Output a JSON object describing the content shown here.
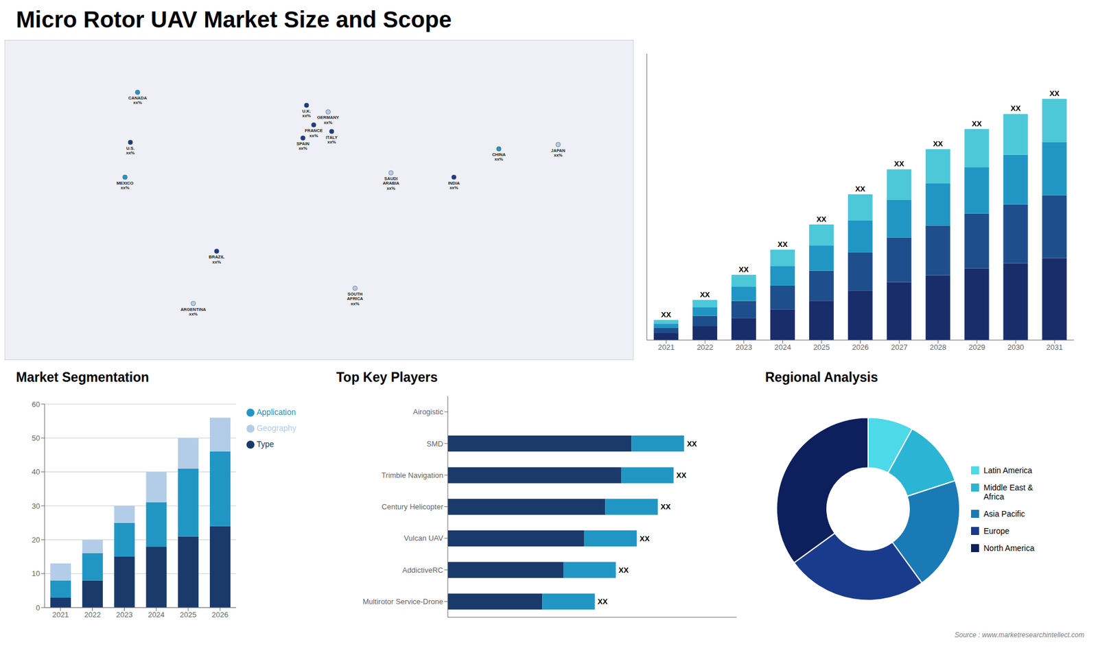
{
  "title": "Micro Rotor UAV Market Size and Scope",
  "source": "Source : www.marketresearchintellect.com",
  "chart_data": [
    {
      "type": "scatter",
      "x": [
        -100,
        -96,
        -103,
        -52,
        -65,
        -2,
        2,
        10,
        -4,
        12,
        45,
        25,
        105,
        138,
        80
      ],
      "values": [
        38,
        61,
        22,
        -12,
        -36,
        55,
        46,
        52,
        40,
        43,
        24,
        -29,
        35,
        37,
        22
      ],
      "colors": [
        "#1a3a8c",
        "#2196c4",
        "#2196c4",
        "#1a3a8c",
        "#b3cde8",
        "#1a3a8c",
        "#1a3a8c",
        "#b3cde8",
        "#1a3a8c",
        "#1a3a8c",
        "#b3cde8",
        "#b3cde8",
        "#2196c4",
        "#b3cde8",
        "#1a3a8c"
      ],
      "labels": [
        "U.S.\nxx%",
        "CANADA\nxx%",
        "MEXICO\nxx%",
        "BRAZIL\nxx%",
        "ARGENTINA\nxx%",
        "U.K.\nxx%",
        "FRANCE\nxx%",
        "GERMANY\nxx%",
        "SPAIN\nxx%",
        "ITALY\nxx%",
        "SAUDI\nARABIA\nxx%",
        "SOUTH\nAFRICA\nxx%",
        "CHINA\nxx%",
        "JAPAN\nxx%",
        "INDIA\nxx%"
      ],
      "xlim": [
        -170,
        180
      ],
      "ylim": [
        -62,
        85
      ],
      "tick_labels": false,
      "grid": false
    },
    {
      "type": "bar",
      "stacked": true,
      "categories": [
        "2021",
        "2022",
        "2023",
        "2024",
        "2025",
        "2026",
        "2027",
        "2028",
        "2029",
        "2030",
        "2031"
      ],
      "series": [
        {
          "color": "#1a2d6b",
          "values": [
            1.36,
            2.72,
            4.42,
            6.12,
            7.82,
            9.86,
            11.56,
            12.92,
            14.28,
            15.3,
            16.32
          ]
        },
        {
          "color": "#1f4e8c",
          "values": [
            1.04,
            2.08,
            3.38,
            4.68,
            5.98,
            7.54,
            8.84,
            9.88,
            10.92,
            11.7,
            12.48
          ]
        },
        {
          "color": "#2196c4",
          "values": [
            0.88,
            1.76,
            2.86,
            3.96,
            5.06,
            6.38,
            7.48,
            8.36,
            9.24,
            9.9,
            10.56
          ]
        },
        {
          "color": "#4dc8d8",
          "values": [
            0.72,
            1.44,
            2.34,
            3.24,
            4.14,
            5.22,
            6.12,
            6.84,
            7.56,
            8.1,
            8.64
          ],
          "value_labels": [
            "XX",
            "XX",
            "XX",
            "XX",
            "XX",
            "XX",
            "XX",
            "XX",
            "XX",
            "XX",
            "XX"
          ]
        }
      ],
      "ylim": [
        0,
        57
      ],
      "tick_labels": "x",
      "grid": false
    },
    {
      "type": "bar",
      "title": "Market Segmentation",
      "stacked": true,
      "categories": [
        "2021",
        "2022",
        "2023",
        "2024",
        "2025",
        "2026"
      ],
      "series": [
        {
          "name": "Type",
          "color": "#1a3a6b",
          "values": [
            3,
            8,
            15,
            18,
            21,
            24
          ]
        },
        {
          "name": "Application",
          "color": "#2196c4",
          "values": [
            5,
            8,
            10,
            13,
            20,
            22
          ]
        },
        {
          "name": "Geography",
          "color": "#b3cde8",
          "values": [
            5,
            4,
            5,
            9,
            9,
            10
          ]
        }
      ],
      "ylim": [
        0,
        60
      ],
      "yticks": [
        0,
        10,
        20,
        30,
        40,
        50,
        60
      ],
      "grid": true,
      "legend": "right"
    },
    {
      "type": "bar",
      "title": "Top Key Players",
      "orientation": "horizontal",
      "stacked": true,
      "categories": [
        "Airogistic",
        "SMD",
        "Trimble Navigation",
        "Century Helicopter",
        "Vulcan UAV",
        "AddictiveRC",
        "Multirotor Service-Drone"
      ],
      "series": [
        {
          "color": "#1a3a6b",
          "values": [
            0,
            35,
            33,
            30,
            26,
            22,
            18
          ]
        },
        {
          "color": "#2196c4",
          "values": [
            0,
            10,
            10,
            10,
            10,
            10,
            10
          ],
          "value_labels": [
            null,
            "XX",
            "XX",
            "XX",
            "XX",
            "XX",
            "XX"
          ]
        }
      ],
      "xlim": [
        0,
        55
      ],
      "tick_labels": "y",
      "grid": false
    },
    {
      "type": "pie",
      "title": "Regional Analysis",
      "categories": [
        "Latin America",
        "Middle East &\nAfrica",
        "Asia Pacific",
        "Europe",
        "North America"
      ],
      "values": [
        8,
        12,
        20,
        25,
        35
      ],
      "colors": [
        "#4dd9e8",
        "#2ab5d4",
        "#1a7ab5",
        "#1a3a8c",
        "#0d1f5c"
      ],
      "legend": "right"
    }
  ]
}
